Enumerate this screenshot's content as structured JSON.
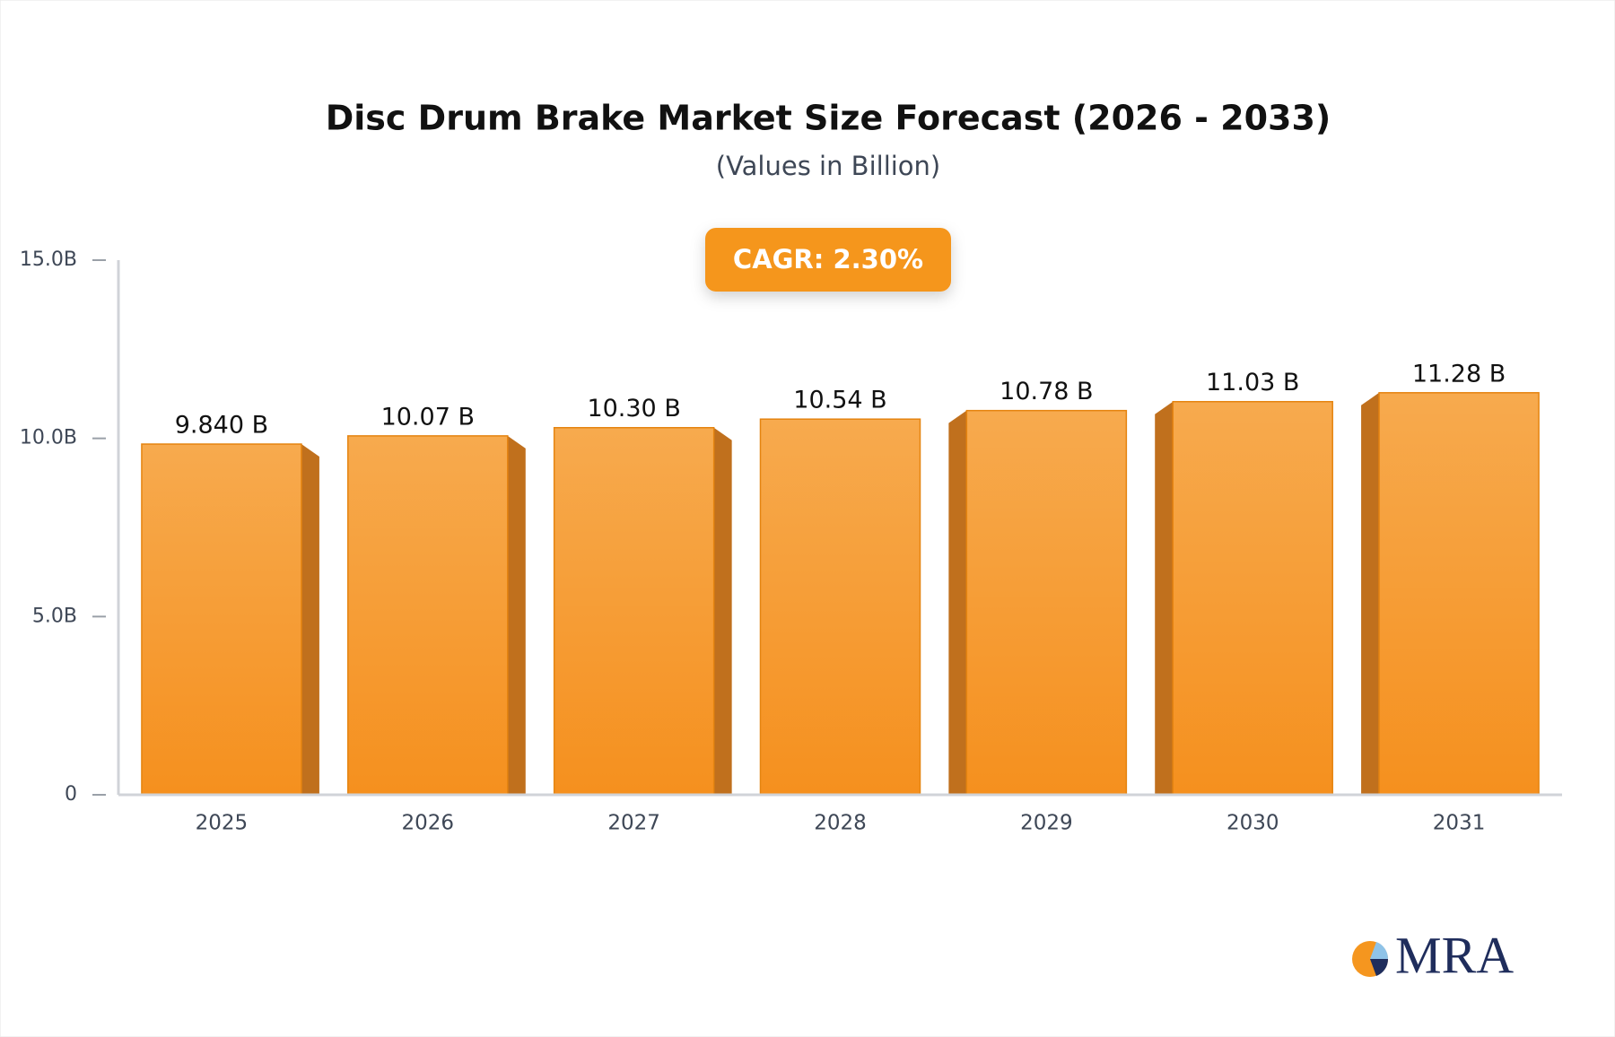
{
  "chart_data": {
    "type": "bar",
    "title": "Disc Drum Brake Market Size Forecast (2026 - 2033)",
    "subtitle": "(Values in Billion)",
    "annotation": "CAGR: 2.30%",
    "categories": [
      "2025",
      "2026",
      "2027",
      "2028",
      "2029",
      "2030",
      "2031"
    ],
    "values": [
      9.84,
      10.07,
      10.3,
      10.54,
      10.78,
      11.03,
      11.28
    ],
    "value_labels": [
      "9.840 B",
      "10.07 B",
      "10.30 B",
      "10.54 B",
      "10.78 B",
      "11.03 B",
      "11.28 B"
    ],
    "color": "#f5961f",
    "ylim": [
      0,
      15
    ],
    "yticks": [
      0,
      {
        "value": 5,
        "label": "5.0B"
      },
      {
        "value": 10,
        "label": "10.0B"
      },
      {
        "value": 15,
        "label": "15.0B"
      }
    ],
    "grid": false
  },
  "logo": "MRA"
}
